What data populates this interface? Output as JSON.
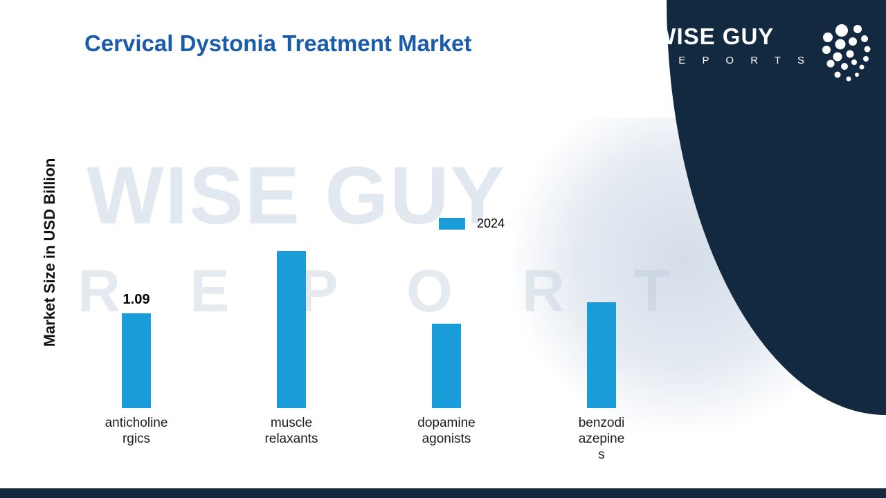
{
  "header": {
    "title": "Cervical Dystonia Treatment Market"
  },
  "logo": {
    "wordmark": "WISE GUY",
    "subtext": "R E P O R T S"
  },
  "watermark": {
    "wordmark": "WISE GUY",
    "subtext": "R E P O R T S"
  },
  "chart_data": {
    "type": "bar",
    "title": "Cervical Dystonia Treatment Market",
    "xlabel": "",
    "ylabel": "Market Size in USD Billion",
    "legend": {
      "label": "2024",
      "position": "top-center"
    },
    "grid": false,
    "ylim": [
      0,
      1.8
    ],
    "categories": [
      "anticholinergics",
      "muscle relaxants",
      "dopamine agonists",
      "benzodiazepines"
    ],
    "category_label_lines": [
      [
        "anticholine",
        "rgics"
      ],
      [
        "muscle",
        "relaxants"
      ],
      [
        "dopamine",
        "agonists"
      ],
      [
        "benzodi",
        "azepine",
        "s"
      ]
    ],
    "series": [
      {
        "name": "2024",
        "values": [
          1.09,
          1.8,
          0.97,
          1.21
        ]
      }
    ],
    "value_labels": [
      "1.09",
      "",
      "",
      ""
    ],
    "colors": {
      "bar": "#199cd8",
      "title": "#1a5caa",
      "navy": "#13293f",
      "watermark": "#ccd6e3"
    }
  }
}
